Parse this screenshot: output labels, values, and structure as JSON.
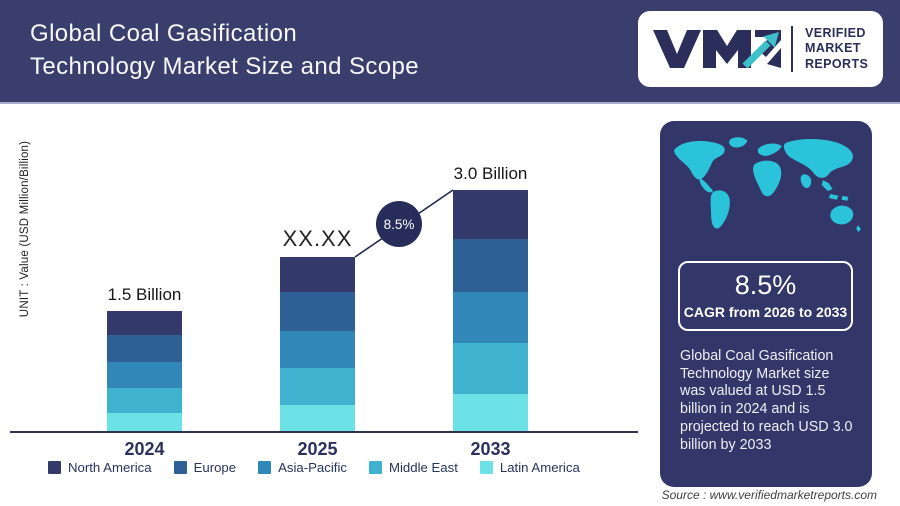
{
  "header": {
    "title_line1": "Global Coal Gasification",
    "title_line2": "Technology Market Size and Scope",
    "logo": {
      "mark": "VMR",
      "name_lines": [
        "VERIFIED",
        "MARKET",
        "REPORTS"
      ],
      "navy": "#2b2e5a",
      "teal": "#3fbfc9"
    }
  },
  "chart_data": {
    "type": "stacked-bar",
    "title": "",
    "ylabel": "UNIT : Value (USD Million/Billion)",
    "categories": [
      "2024",
      "2025",
      "2033"
    ],
    "bar_value_labels": [
      "1.5 Billion",
      "XX.XX",
      "3.0 Billion"
    ],
    "bar_heights_billion": [
      1.5,
      2.17,
      3.0
    ],
    "series": [
      {
        "name": "North America",
        "color": "#343a6b",
        "fraction": 0.2
      },
      {
        "name": "Europe",
        "color": "#2e6095",
        "fraction": 0.22
      },
      {
        "name": "Asia-Pacific",
        "color": "#3187b8",
        "fraction": 0.21
      },
      {
        "name": "Middle East",
        "color": "#3eb2cf",
        "fraction": 0.21
      },
      {
        "name": "Latin America",
        "color": "#6ce2e7",
        "fraction": 0.16
      }
    ],
    "growth_badge": "8.5%",
    "legend_position": "bottom",
    "grid": false,
    "axis_color": "#2d3252"
  },
  "sidebar": {
    "map_icon": "world-map",
    "map_color": "#2bc3da",
    "cagr_value": "8.5%",
    "cagr_label": "CAGR from 2026 to 2033",
    "description": "Global Coal Gasification Technology Market size was valued at USD 1.5 billion in 2024 and is projected to reach USD 3.0 billion by 2033"
  },
  "footer": {
    "source": "Source : www.verifiedmarketreports.com"
  }
}
